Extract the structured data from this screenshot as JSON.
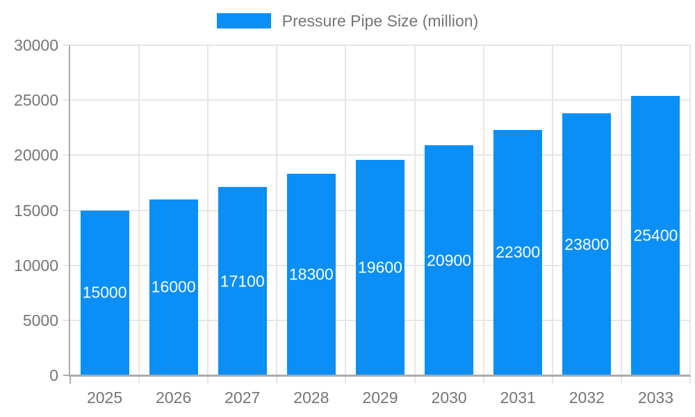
{
  "legend": {
    "label": "Pressure Pipe Size (million)"
  },
  "colors": {
    "bar": "#0a8ff8",
    "bar_label": "#ffffff",
    "grid": "#e6e6e6",
    "axis": "#ababab",
    "text": "#757575",
    "background": "#ffffff"
  },
  "chart_data": {
    "type": "bar",
    "title": "Pressure Pipe Size (million)",
    "series_name": "Pressure Pipe Size (million)",
    "categories": [
      "2025",
      "2026",
      "2027",
      "2028",
      "2029",
      "2030",
      "2031",
      "2032",
      "2033"
    ],
    "values": [
      15000,
      16000,
      17100,
      18300,
      19600,
      20900,
      22300,
      23800,
      25400
    ],
    "bar_labels": [
      "15000",
      "16000",
      "17100",
      "18300",
      "19600",
      "20900",
      "22300",
      "23800",
      "25400"
    ],
    "xlabel": "",
    "ylabel": "",
    "ylim": [
      0,
      30000
    ],
    "ytick_step": 5000,
    "yticks": [
      0,
      5000,
      10000,
      15000,
      20000,
      25000,
      30000
    ],
    "ytick_labels": [
      "0",
      "5000",
      "10000",
      "15000",
      "20000",
      "25000",
      "30000"
    ],
    "grid": true,
    "legend_position": "top",
    "bar_labels_visible": true,
    "bar_label_position": "center"
  }
}
